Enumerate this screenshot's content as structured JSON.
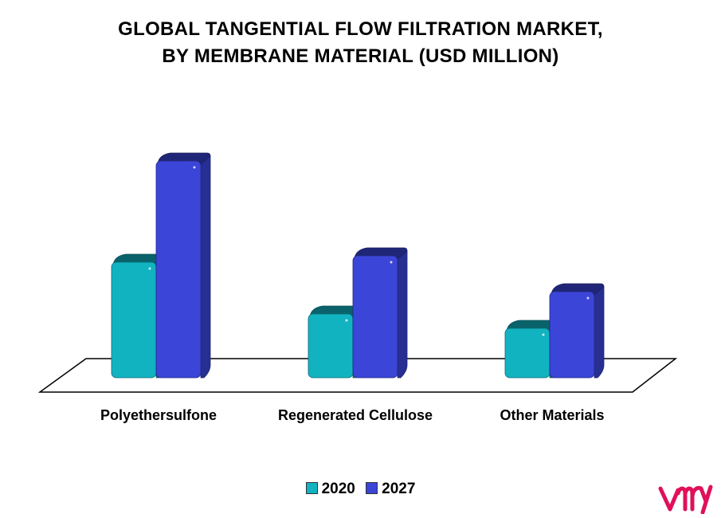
{
  "chart_data": {
    "type": "bar",
    "title_lines": [
      "GLOBAL TANGENTIAL FLOW FILTRATION MARKET,",
      "BY MEMBRANE MATERIAL (USD MILLION)"
    ],
    "categories": [
      "Polyethersulfone",
      "Regenerated Cellulose",
      "Other Materials"
    ],
    "series": [
      {
        "name": "2020",
        "color": "#12b3c1",
        "values": [
          145,
          80,
          62
        ]
      },
      {
        "name": "2027",
        "color": "#3b45d8",
        "values": [
          272,
          153,
          108
        ]
      }
    ],
    "ylim": [
      0,
      290
    ],
    "grid": false,
    "legend_position": "bottom-center",
    "style": "3d-column"
  },
  "logo": {
    "icon": "vmr-logo-icon",
    "color": "#e0105a"
  }
}
